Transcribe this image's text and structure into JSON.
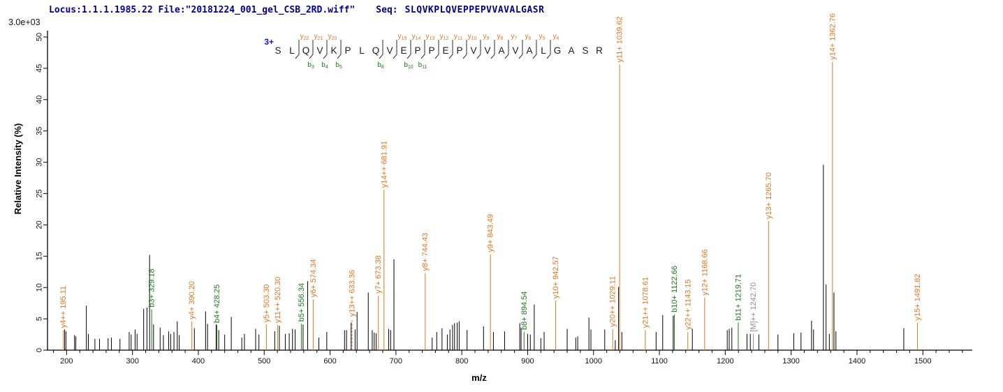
{
  "header": {
    "locus_file": "Locus:1.1.1.1985.22 File:\"20181224_001_gel_CSB_2RD.wiff\"",
    "seq_label": "Seq:",
    "sequence": "SLQVKPLQVEPPEPVVAVALGASR"
  },
  "intensity_scale": "3.0e+03",
  "colors": {
    "y_ion": "#e0761f",
    "b_ion": "#1a7a1a",
    "precursor": "#8c8c8c",
    "peak": "#000000",
    "header": "#00008b",
    "charge": "#1414cc",
    "axis": "#000000"
  },
  "sequence_diagram": {
    "charge": "3+",
    "residues": [
      "S",
      "L",
      "Q",
      "V",
      "K",
      "P",
      "L",
      "Q",
      "V",
      "E",
      "P",
      "P",
      "E",
      "P",
      "V",
      "V",
      "A",
      "V",
      "A",
      "L",
      "G",
      "A",
      "S",
      "R"
    ],
    "y_ions": [
      {
        "n": 22,
        "after": 2
      },
      {
        "n": 21,
        "after": 3
      },
      {
        "n": 20,
        "after": 4
      },
      {
        "n": 15,
        "after": 9
      },
      {
        "n": 14,
        "after": 10
      },
      {
        "n": 13,
        "after": 11
      },
      {
        "n": 12,
        "after": 12
      },
      {
        "n": 11,
        "after": 13
      },
      {
        "n": 10,
        "after": 14
      },
      {
        "n": 9,
        "after": 15
      },
      {
        "n": 8,
        "after": 16
      },
      {
        "n": 7,
        "after": 17
      },
      {
        "n": 6,
        "after": 18
      },
      {
        "n": 5,
        "after": 19
      },
      {
        "n": 4,
        "after": 20
      }
    ],
    "b_ions": [
      {
        "n": 3,
        "after": 3
      },
      {
        "n": 4,
        "after": 4
      },
      {
        "n": 5,
        "after": 5
      },
      {
        "n": 8,
        "after": 8
      },
      {
        "n": 10,
        "after": 10
      },
      {
        "n": 11,
        "after": 11
      }
    ]
  },
  "chart_data": {
    "type": "bar",
    "subtype": "ms2-fragmentation-spectrum",
    "title": "",
    "xlabel": "m/z",
    "ylabel": "Relative  Intensity (%)",
    "xlim": [
      171,
      1575
    ],
    "ylim": [
      0,
      50
    ],
    "x_ticks_major": [
      200,
      300,
      400,
      500,
      600,
      700,
      800,
      900,
      1000,
      1100,
      1200,
      1300,
      1400,
      1500
    ],
    "x_minor_step": 20,
    "y_ticks": [
      0,
      5,
      10,
      15,
      20,
      25,
      30,
      35,
      40,
      45,
      50
    ],
    "grid": false,
    "labeled_peaks": [
      {
        "label": "y4++ 195.11",
        "mz": 195.11,
        "pct": 3.2,
        "series": "y"
      },
      {
        "label": "b3+ 329.18",
        "mz": 329.18,
        "pct": 6.5,
        "series": "b"
      },
      {
        "label": "y4+ 390.20",
        "mz": 390.2,
        "pct": 4.6,
        "series": "y"
      },
      {
        "label": "b4+ 428.25",
        "mz": 428.25,
        "pct": 4.0,
        "series": "b"
      },
      {
        "label": "y5+ 503.30",
        "mz": 503.3,
        "pct": 4.1,
        "series": "y"
      },
      {
        "label": "y11++ 520.30",
        "mz": 520.3,
        "pct": 4.0,
        "series": "y"
      },
      {
        "label": "b5+ 556.34",
        "mz": 556.34,
        "pct": 4.2,
        "series": "b"
      },
      {
        "label": "y6+ 574.34",
        "mz": 574.34,
        "pct": 8.1,
        "series": "y"
      },
      {
        "label": "y13++ 633.36",
        "mz": 633.36,
        "pct": 5.0,
        "series": "y",
        "dashed": true
      },
      {
        "label": "y7+ 673.38",
        "mz": 673.38,
        "pct": 8.7,
        "series": "y"
      },
      {
        "label": "y14++ 681.91",
        "mz": 681.91,
        "pct": 25.6,
        "series": "y"
      },
      {
        "label": "y8+ 744.43",
        "mz": 744.43,
        "pct": 12.3,
        "series": "y"
      },
      {
        "label": "y9+ 843.49",
        "mz": 843.49,
        "pct": 15.3,
        "series": "y"
      },
      {
        "label": "b8+ 894.54",
        "mz": 894.54,
        "pct": 2.9,
        "series": "b"
      },
      {
        "label": "y10+ 942.57",
        "mz": 942.57,
        "pct": 7.9,
        "series": "y"
      },
      {
        "label": "y20++ 1029.11",
        "mz": 1029.11,
        "pct": 3.4,
        "series": "y"
      },
      {
        "label": "y11+ 1039.62",
        "mz": 1039.62,
        "pct": 45.6,
        "series": "y"
      },
      {
        "label": "y21++ 1078.61",
        "mz": 1078.61,
        "pct": 3.2,
        "series": "y"
      },
      {
        "label": "b10+ 1122.66",
        "mz": 1122.66,
        "pct": 5.7,
        "series": "b"
      },
      {
        "label": "y22++ 1143.15",
        "mz": 1143.15,
        "pct": 2.9,
        "series": "y"
      },
      {
        "label": "y12+ 1168.66",
        "mz": 1168.66,
        "pct": 8.4,
        "series": "y"
      },
      {
        "label": "b11+ 1219.71",
        "mz": 1219.71,
        "pct": 4.4,
        "series": "b"
      },
      {
        "label": "[M]++ 1242.70",
        "mz": 1242.7,
        "pct": 2.6,
        "series": "precursor"
      },
      {
        "label": "y13+ 1265.70",
        "mz": 1265.7,
        "pct": 20.6,
        "series": "y"
      },
      {
        "label": "y14+ 1362.76",
        "mz": 1362.76,
        "pct": 46.0,
        "series": "y"
      },
      {
        "label": "y15+ 1491.82",
        "mz": 1491.82,
        "pct": 4.4,
        "series": "y"
      }
    ],
    "unlabeled_peaks": [
      [
        197,
        3.3
      ],
      [
        199,
        3.0
      ],
      [
        212,
        2.4
      ],
      [
        214,
        2.2
      ],
      [
        230,
        7.1
      ],
      [
        233,
        2.6
      ],
      [
        243,
        1.8
      ],
      [
        250,
        1.8
      ],
      [
        263,
        1.9
      ],
      [
        268,
        2.0
      ],
      [
        281,
        1.8
      ],
      [
        295,
        2.9
      ],
      [
        298,
        2.5
      ],
      [
        304,
        3.3
      ],
      [
        307,
        2.6
      ],
      [
        317,
        6.6
      ],
      [
        322,
        6.8
      ],
      [
        326,
        15.2
      ],
      [
        332,
        4.1
      ],
      [
        342,
        3.6
      ],
      [
        347,
        2.4
      ],
      [
        355,
        3.0
      ],
      [
        358,
        2.6
      ],
      [
        363,
        2.9
      ],
      [
        368,
        4.6
      ],
      [
        371,
        2.4
      ],
      [
        394,
        3.5
      ],
      [
        411,
        6.2
      ],
      [
        414,
        4.2
      ],
      [
        427,
        4.1
      ],
      [
        431,
        3.2
      ],
      [
        440,
        2.5
      ],
      [
        450,
        5.3
      ],
      [
        466,
        2.0
      ],
      [
        470,
        2.6
      ],
      [
        487,
        3.4
      ],
      [
        492,
        2.5
      ],
      [
        516,
        3.0
      ],
      [
        523,
        3.9
      ],
      [
        532,
        2.6
      ],
      [
        538,
        2.7
      ],
      [
        543,
        3.4
      ],
      [
        547,
        3.3
      ],
      [
        559,
        4.1
      ],
      [
        566,
        11.0
      ],
      [
        583,
        2.0
      ],
      [
        595,
        2.9
      ],
      [
        622,
        3.2
      ],
      [
        625,
        3.2
      ],
      [
        632,
        4.4
      ],
      [
        638,
        3.3
      ],
      [
        641,
        6.1
      ],
      [
        658,
        9.2
      ],
      [
        664,
        3.2
      ],
      [
        667,
        2.8
      ],
      [
        670,
        2.7
      ],
      [
        689,
        3.4
      ],
      [
        692,
        3.2
      ],
      [
        697,
        14.5
      ],
      [
        755,
        2.0
      ],
      [
        762,
        2.9
      ],
      [
        770,
        3.5
      ],
      [
        778,
        2.5
      ],
      [
        782,
        3.3
      ],
      [
        786,
        4.0
      ],
      [
        789,
        4.3
      ],
      [
        793,
        4.4
      ],
      [
        796,
        4.6
      ],
      [
        808,
        3.2
      ],
      [
        833,
        3.8
      ],
      [
        848,
        2.9
      ],
      [
        865,
        3.0
      ],
      [
        888,
        4.3
      ],
      [
        890,
        3.6
      ],
      [
        900,
        2.6
      ],
      [
        904,
        2.5
      ],
      [
        910,
        7.3
      ],
      [
        920,
        1.9
      ],
      [
        925,
        2.9
      ],
      [
        960,
        3.4
      ],
      [
        973,
        2.0
      ],
      [
        976,
        2.2
      ],
      [
        993,
        5.2
      ],
      [
        996,
        3.3
      ],
      [
        1017,
        3.3
      ],
      [
        1033,
        1.6
      ],
      [
        1038,
        10.1
      ],
      [
        1043,
        2.9
      ],
      [
        1095,
        2.9
      ],
      [
        1105,
        5.6
      ],
      [
        1121,
        5.5
      ],
      [
        1150,
        3.4
      ],
      [
        1203,
        3.2
      ],
      [
        1206,
        3.4
      ],
      [
        1210,
        3.6
      ],
      [
        1233,
        2.6
      ],
      [
        1238,
        2.6
      ],
      [
        1251,
        2.5
      ],
      [
        1280,
        2.5
      ],
      [
        1304,
        2.7
      ],
      [
        1315,
        2.8
      ],
      [
        1331,
        4.7
      ],
      [
        1334,
        3.3
      ],
      [
        1349,
        29.6
      ],
      [
        1353,
        10.5
      ],
      [
        1358,
        2.6
      ],
      [
        1365,
        9.2
      ],
      [
        1368,
        3.0
      ],
      [
        1471,
        3.5
      ]
    ]
  }
}
